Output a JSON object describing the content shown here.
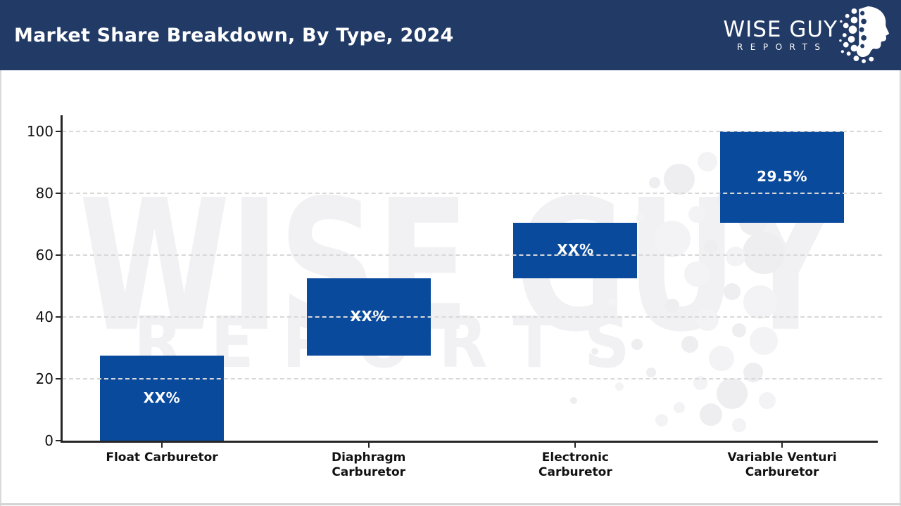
{
  "header": {
    "title": "Market Share Breakdown, By Type, 2024",
    "logo": {
      "line1": "WISE GUY",
      "line2": "REPORTS"
    }
  },
  "watermark": {
    "line1": "WISE GUY",
    "line2": "REPORTS"
  },
  "colors": {
    "header_bg": "#213a66",
    "bar": "#0a4a9c",
    "grid": "#d8d8d8",
    "axis": "#262626",
    "watermark": "#f1f1f4",
    "bar_label": "#ffffff",
    "title_text": "#ffffff"
  },
  "chart_data": {
    "type": "bar",
    "subtype": "waterfall",
    "title": "Market Share Breakdown, By Type, 2024",
    "xlabel": "",
    "ylabel": "",
    "categories": [
      "Float Carburetor",
      "Diaphragm\nCarburetor",
      "Electronic\nCarburetor",
      "Variable Venturi\nCarburetor"
    ],
    "segments": [
      {
        "category": "Float Carburetor",
        "start": 0,
        "end": 27.5,
        "label": "XX%"
      },
      {
        "category": "Diaphragm Carburetor",
        "start": 27.5,
        "end": 52.5,
        "label": "XX%"
      },
      {
        "category": "Electronic Carburetor",
        "start": 52.5,
        "end": 70.5,
        "label": "XX%"
      },
      {
        "category": "Variable Venturi Carburetor",
        "start": 70.5,
        "end": 100,
        "label": "29.5%"
      }
    ],
    "yticks": [
      0,
      20,
      40,
      60,
      80,
      100
    ],
    "ylim": [
      0,
      105
    ],
    "grid": "horizontal-dashed",
    "legend": "none"
  }
}
